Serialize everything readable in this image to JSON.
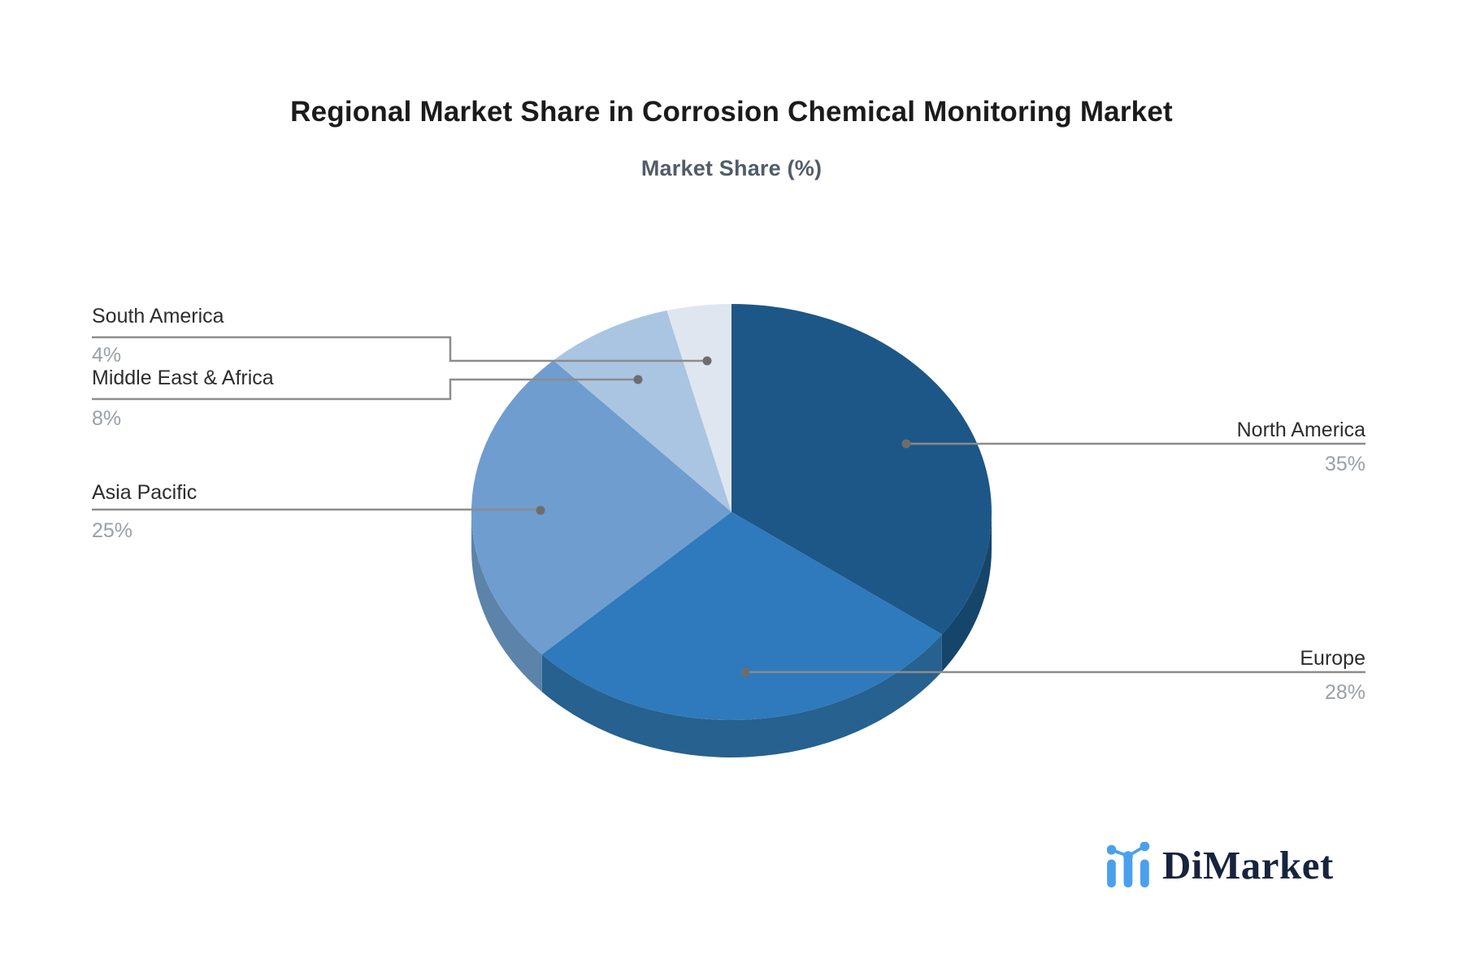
{
  "header": {
    "title": "Regional Market Share in Corrosion Chemical Monitoring Market",
    "subtitle": "Market Share (%)"
  },
  "logo": {
    "text": "DiMarket",
    "icon": "bar-chart-trend-icon",
    "icon_color": "#4aa0ee",
    "text_color": "#17243d"
  },
  "chart_data": {
    "type": "pie",
    "style": "3d",
    "title": "Regional Market Share in Corrosion Chemical Monitoring Market",
    "subtitle": "Market Share (%)",
    "unit": "%",
    "total": 100,
    "start_angle_deg": -90,
    "direction": "clockwise",
    "label_style": "callout-lines",
    "categories": [
      "North America",
      "Europe",
      "Asia Pacific",
      "Middle East & Africa",
      "South America"
    ],
    "values": [
      35,
      28,
      25,
      8,
      4
    ],
    "value_labels": [
      "35%",
      "28%",
      "25%",
      "8%",
      "4%"
    ],
    "slice_colors": [
      "#1d5787",
      "#2e7abc",
      "#6f9dcf",
      "#aac5e2",
      "#dfe6f0"
    ],
    "slice_side_colors": [
      "#16456c",
      "#26618f",
      "#5c83aa",
      "#8aa6c2",
      "#b9c5d4"
    ],
    "callout_line_color": "#8c8c8c",
    "callout_dot_color": "#6d6d6d",
    "category_text_color": "#2d2d2d",
    "percent_text_color": "#9aa0a5"
  }
}
